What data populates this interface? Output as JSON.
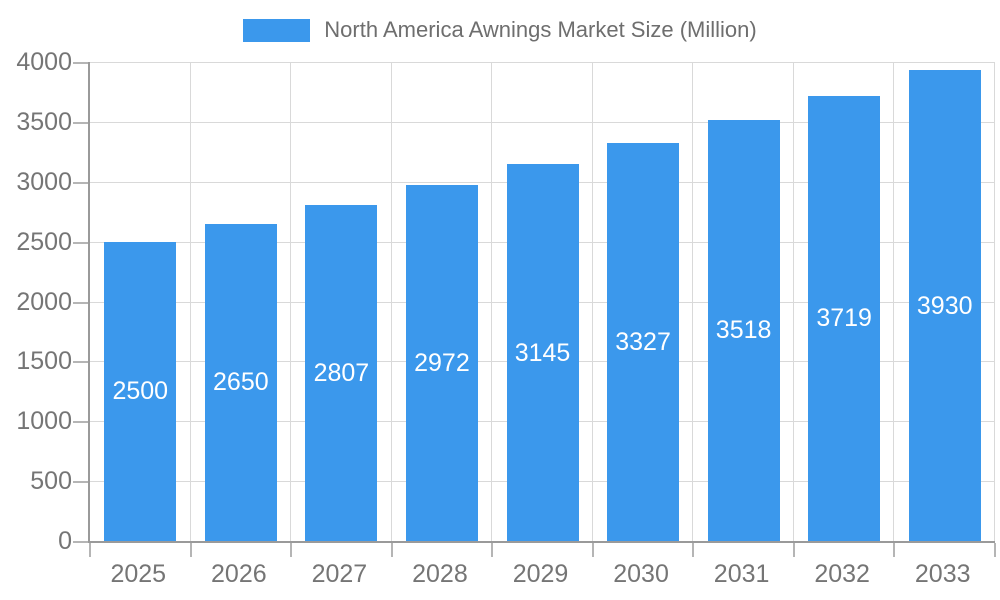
{
  "chart_data": {
    "type": "bar",
    "title": "North America Awnings Market Size (Million)",
    "categories": [
      "2025",
      "2026",
      "2027",
      "2028",
      "2029",
      "2030",
      "2031",
      "2032",
      "2033"
    ],
    "values": [
      2500,
      2650,
      2807,
      2972,
      3145,
      3327,
      3518,
      3719,
      3930
    ],
    "xlabel": "",
    "ylabel": "",
    "ylim": [
      0,
      4000
    ],
    "ytick_step": 500,
    "grid": "on",
    "legend_position": "top",
    "bar_color": "#3B98EC",
    "bar_label_color": "#FFFFFF",
    "axis_text_color": "#757575",
    "axis_line_color": "#9A9A9A",
    "gridline_color": "#D9D9D9"
  }
}
